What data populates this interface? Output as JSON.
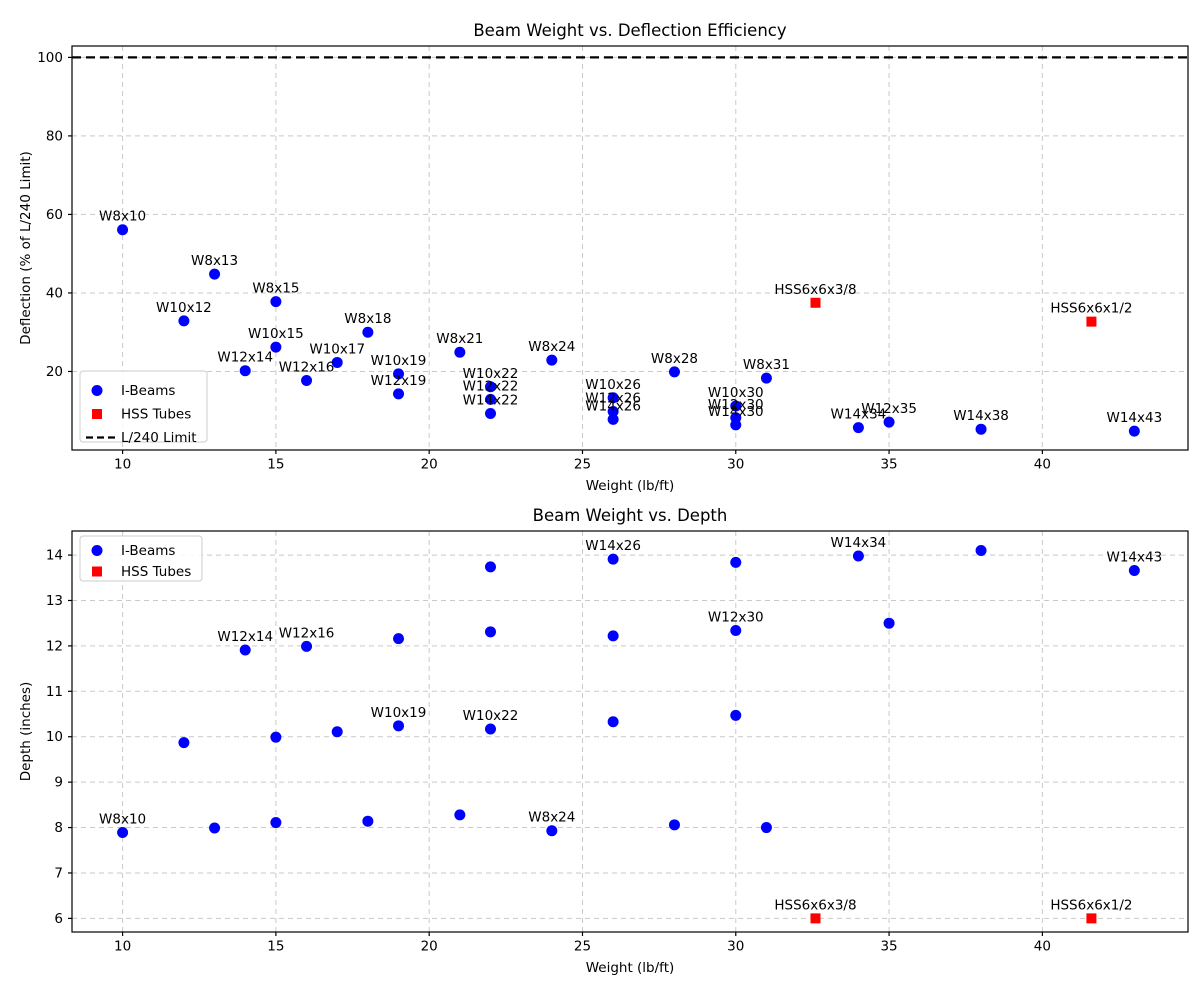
{
  "figure": {
    "background": "#ffffff",
    "colors": {
      "ibeam": "#0000ff",
      "hss": "#ff0000",
      "limit": "#000000",
      "grid": "#c9c9c9"
    }
  },
  "chart_data": [
    {
      "id": "deflection-chart",
      "type": "scatter",
      "title": "Beam Weight vs. Deflection Efficiency",
      "xlabel": "Weight (lb/ft)",
      "ylabel": "Deflection (% of L/240 Limit)",
      "xlim": [
        8.35,
        44.75
      ],
      "ylim": [
        0,
        102.9
      ],
      "xticks": [
        10,
        15,
        20,
        25,
        30,
        35,
        40
      ],
      "yticks": [
        20,
        40,
        60,
        80,
        100
      ],
      "grid": true,
      "legend": {
        "position": "lower-left",
        "entries": [
          {
            "label": "I-Beams",
            "marker": "circle",
            "color": "#0000ff"
          },
          {
            "label": "HSS Tubes",
            "marker": "square",
            "color": "#ff0000"
          },
          {
            "label": "L/240 Limit",
            "marker": "dashed-line",
            "color": "#000000"
          }
        ]
      },
      "reference_line": {
        "y": 100,
        "label": "L/240 Limit",
        "style": "dashed",
        "color": "#000000"
      },
      "series": [
        {
          "name": "I-Beams",
          "marker": "circle",
          "color": "#0000ff",
          "points": [
            {
              "label": "W8x10",
              "x": 10,
              "y": 56.1,
              "labeled": true
            },
            {
              "label": "W8x13",
              "x": 13,
              "y": 44.8,
              "labeled": true
            },
            {
              "label": "W8x15",
              "x": 15,
              "y": 37.8,
              "labeled": true
            },
            {
              "label": "W8x18",
              "x": 18,
              "y": 30.0,
              "labeled": true
            },
            {
              "label": "W8x21",
              "x": 21,
              "y": 24.9,
              "labeled": true
            },
            {
              "label": "W8x24",
              "x": 24,
              "y": 22.9,
              "labeled": true
            },
            {
              "label": "W8x28",
              "x": 28,
              "y": 19.9,
              "labeled": true
            },
            {
              "label": "W8x31",
              "x": 31,
              "y": 18.3,
              "labeled": true
            },
            {
              "label": "W10x12",
              "x": 12,
              "y": 32.9,
              "labeled": true
            },
            {
              "label": "W10x15",
              "x": 15,
              "y": 26.2,
              "labeled": true
            },
            {
              "label": "W10x17",
              "x": 17,
              "y": 22.3,
              "labeled": true
            },
            {
              "label": "W10x19",
              "x": 19,
              "y": 19.4,
              "labeled": true
            },
            {
              "label": "W10x22",
              "x": 22,
              "y": 16.1,
              "labeled": true
            },
            {
              "label": "W10x26",
              "x": 26,
              "y": 13.3,
              "labeled": true
            },
            {
              "label": "W10x30",
              "x": 30,
              "y": 11.2,
              "labeled": true
            },
            {
              "label": "W12x14",
              "x": 14,
              "y": 20.2,
              "labeled": true
            },
            {
              "label": "W12x16",
              "x": 16,
              "y": 17.7,
              "labeled": true
            },
            {
              "label": "W12x19",
              "x": 19,
              "y": 14.3,
              "labeled": true
            },
            {
              "label": "W12x22",
              "x": 22,
              "y": 12.9,
              "labeled": true
            },
            {
              "label": "W12x26",
              "x": 26,
              "y": 9.8,
              "labeled": true
            },
            {
              "label": "W12x30",
              "x": 30,
              "y": 8.2,
              "labeled": true
            },
            {
              "label": "W12x35",
              "x": 35,
              "y": 7.1,
              "labeled": true
            },
            {
              "label": "W14x22",
              "x": 22,
              "y": 9.3,
              "labeled": true
            },
            {
              "label": "W14x26",
              "x": 26,
              "y": 7.8,
              "labeled": true
            },
            {
              "label": "W14x30",
              "x": 30,
              "y": 6.4,
              "labeled": true
            },
            {
              "label": "W14x34",
              "x": 34,
              "y": 5.7,
              "labeled": true
            },
            {
              "label": "W14x38",
              "x": 38,
              "y": 5.3,
              "labeled": true
            },
            {
              "label": "W14x43",
              "x": 43,
              "y": 4.8,
              "labeled": true
            }
          ]
        },
        {
          "name": "HSS Tubes",
          "marker": "square",
          "color": "#ff0000",
          "points": [
            {
              "label": "HSS6x6x3/8",
              "x": 32.6,
              "y": 37.5,
              "labeled": true
            },
            {
              "label": "HSS6x6x1/2",
              "x": 41.6,
              "y": 32.7,
              "labeled": true
            }
          ]
        }
      ]
    },
    {
      "id": "depth-chart",
      "type": "scatter",
      "title": "Beam Weight vs. Depth",
      "xlabel": "Weight (lb/ft)",
      "ylabel": "Depth (inches)",
      "xlim": [
        8.35,
        44.75
      ],
      "ylim": [
        5.7,
        14.53
      ],
      "xticks": [
        10,
        15,
        20,
        25,
        30,
        35,
        40
      ],
      "yticks": [
        6,
        7,
        8,
        9,
        10,
        11,
        12,
        13,
        14
      ],
      "grid": true,
      "legend": {
        "position": "upper-left",
        "entries": [
          {
            "label": "I-Beams",
            "marker": "circle",
            "color": "#0000ff"
          },
          {
            "label": "HSS Tubes",
            "marker": "square",
            "color": "#ff0000"
          }
        ]
      },
      "series": [
        {
          "name": "I-Beams",
          "marker": "circle",
          "color": "#0000ff",
          "points": [
            {
              "label": "W8x10",
              "x": 10,
              "y": 7.89,
              "labeled": true
            },
            {
              "label": "W8x13",
              "x": 13,
              "y": 7.99,
              "labeled": false
            },
            {
              "label": "W8x15",
              "x": 15,
              "y": 8.11,
              "labeled": false
            },
            {
              "label": "W8x18",
              "x": 18,
              "y": 8.14,
              "labeled": false
            },
            {
              "label": "W8x21",
              "x": 21,
              "y": 8.28,
              "labeled": false
            },
            {
              "label": "W8x24",
              "x": 24,
              "y": 7.93,
              "labeled": true
            },
            {
              "label": "W8x28",
              "x": 28,
              "y": 8.06,
              "labeled": false
            },
            {
              "label": "W8x31",
              "x": 31,
              "y": 8.0,
              "labeled": false
            },
            {
              "label": "W10x12",
              "x": 12,
              "y": 9.87,
              "labeled": false
            },
            {
              "label": "W10x15",
              "x": 15,
              "y": 9.99,
              "labeled": false
            },
            {
              "label": "W10x17",
              "x": 17,
              "y": 10.11,
              "labeled": false
            },
            {
              "label": "W10x19",
              "x": 19,
              "y": 10.24,
              "labeled": true
            },
            {
              "label": "W10x22",
              "x": 22,
              "y": 10.17,
              "labeled": true
            },
            {
              "label": "W10x26",
              "x": 26,
              "y": 10.33,
              "labeled": false
            },
            {
              "label": "W10x30",
              "x": 30,
              "y": 10.47,
              "labeled": false
            },
            {
              "label": "W12x14",
              "x": 14,
              "y": 11.91,
              "labeled": true
            },
            {
              "label": "W12x16",
              "x": 16,
              "y": 11.99,
              "labeled": true
            },
            {
              "label": "W12x19",
              "x": 19,
              "y": 12.16,
              "labeled": false
            },
            {
              "label": "W12x22",
              "x": 22,
              "y": 12.31,
              "labeled": false
            },
            {
              "label": "W12x26",
              "x": 26,
              "y": 12.22,
              "labeled": false
            },
            {
              "label": "W12x30",
              "x": 30,
              "y": 12.34,
              "labeled": true
            },
            {
              "label": "W12x35",
              "x": 35,
              "y": 12.5,
              "labeled": false
            },
            {
              "label": "W14x22",
              "x": 22,
              "y": 13.74,
              "labeled": false
            },
            {
              "label": "W14x26",
              "x": 26,
              "y": 13.91,
              "labeled": true
            },
            {
              "label": "W14x30",
              "x": 30,
              "y": 13.84,
              "labeled": false
            },
            {
              "label": "W14x34",
              "x": 34,
              "y": 13.98,
              "labeled": true
            },
            {
              "label": "W14x38",
              "x": 38,
              "y": 14.1,
              "labeled": false
            },
            {
              "label": "W14x43",
              "x": 43,
              "y": 13.66,
              "labeled": true
            }
          ]
        },
        {
          "name": "HSS Tubes",
          "marker": "square",
          "color": "#ff0000",
          "points": [
            {
              "label": "HSS6x6x3/8",
              "x": 32.6,
              "y": 6.0,
              "labeled": true
            },
            {
              "label": "HSS6x6x1/2",
              "x": 41.6,
              "y": 6.0,
              "labeled": true
            }
          ]
        }
      ]
    }
  ]
}
